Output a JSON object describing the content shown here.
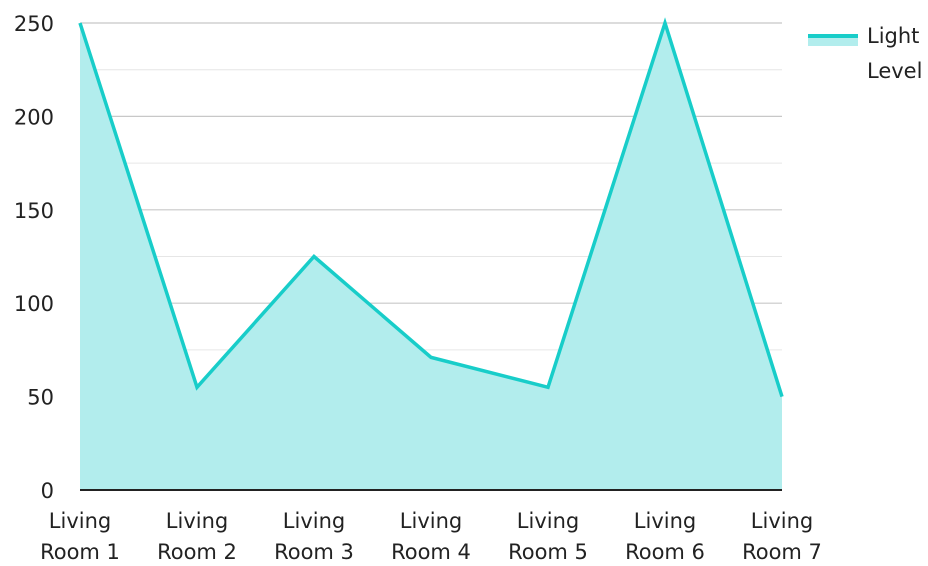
{
  "chart_data": {
    "type": "area",
    "title": "",
    "xlabel": "",
    "ylabel": "",
    "categories": [
      [
        "Living",
        "Room 1"
      ],
      [
        "Living",
        "Room 2"
      ],
      [
        "Living",
        "Room 3"
      ],
      [
        "Living",
        "Room 4"
      ],
      [
        "Living",
        "Room 5"
      ],
      [
        "Living",
        "Room 6"
      ],
      [
        "Living",
        "Room 7"
      ]
    ],
    "series": [
      {
        "name": "Light Level",
        "legend_lines": [
          "Light",
          "Level"
        ],
        "values": [
          250,
          55,
          125,
          71,
          55,
          250,
          50
        ],
        "line_color": "#18cdc9",
        "fill_color": "#b2eded"
      }
    ],
    "ylim": [
      0,
      250
    ],
    "yticks": [
      0,
      50,
      100,
      150,
      200,
      250
    ],
    "grid": true,
    "legend_position": "top-right"
  }
}
